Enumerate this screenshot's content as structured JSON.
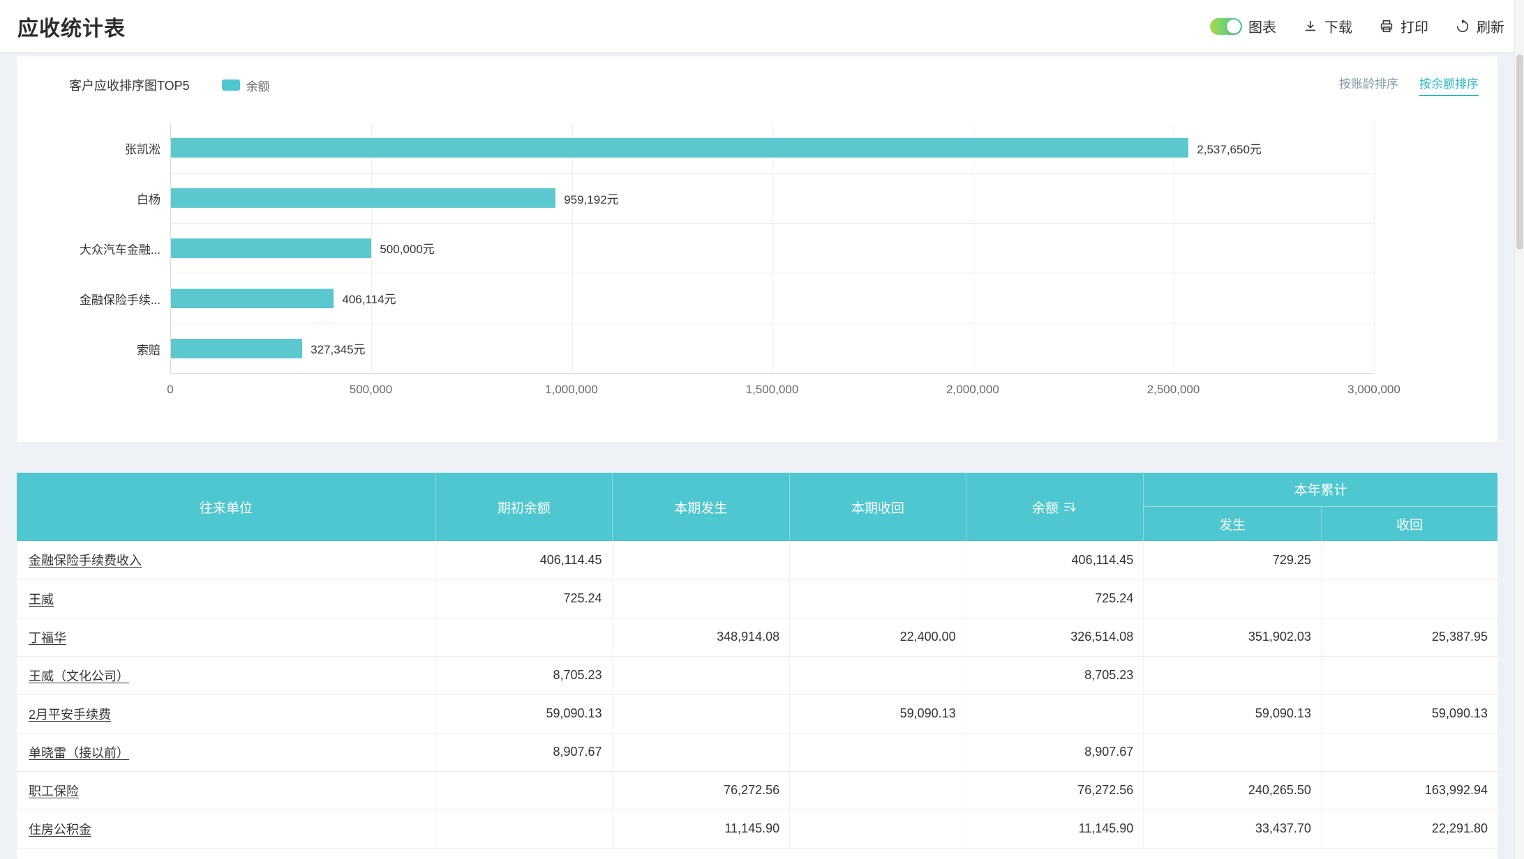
{
  "page": {
    "title": "应收统计表"
  },
  "toolbar": {
    "chart_toggle_label": "图表",
    "chart_toggle_on": true,
    "download_label": "下载",
    "print_label": "打印",
    "refresh_label": "刷新"
  },
  "chart": {
    "title": "客户应收排序图TOP5",
    "legend_label": "余额",
    "sort_by_age": "按账龄排序",
    "sort_by_balance": "按余额排序",
    "active_sort": "按余额排序"
  },
  "chart_data": {
    "type": "bar",
    "orientation": "horizontal",
    "title": "客户应收排序图TOP5",
    "legend": [
      "余额"
    ],
    "categories": [
      "张凯淞",
      "白杨",
      "大众汽车金融...",
      "金融保险手续...",
      "索赔"
    ],
    "values": [
      2537650,
      959192,
      500000,
      406114,
      327345
    ],
    "value_labels": [
      "2,537,650元",
      "959,192元",
      "500,000元",
      "406,114元",
      "327,345元"
    ],
    "xlim": [
      0,
      3000000
    ],
    "xticks": [
      "0",
      "500,000",
      "1,000,000",
      "1,500,000",
      "2,000,000",
      "2,500,000",
      "3,000,000"
    ],
    "grid": true,
    "legend_position": "top-left"
  },
  "table": {
    "headers": {
      "unit": "往来单位",
      "opening": "期初余额",
      "current_incurred": "本期发生",
      "current_received": "本期收回",
      "balance": "余额",
      "ytd": "本年累计",
      "ytd_incurred": "发生",
      "ytd_received": "收回"
    },
    "rows": [
      {
        "unit": "金融保险手续费收入",
        "opening": "406,114.45",
        "current_incurred": "",
        "current_received": "",
        "balance": "406,114.45",
        "ytd_incurred": "729.25",
        "ytd_received": ""
      },
      {
        "unit": "王威",
        "opening": "725.24",
        "current_incurred": "",
        "current_received": "",
        "balance": "725.24",
        "ytd_incurred": "",
        "ytd_received": ""
      },
      {
        "unit": "丁福华",
        "opening": "",
        "current_incurred": "348,914.08",
        "current_received": "22,400.00",
        "balance": "326,514.08",
        "ytd_incurred": "351,902.03",
        "ytd_received": "25,387.95"
      },
      {
        "unit": "王威（文化公司）",
        "opening": "8,705.23",
        "current_incurred": "",
        "current_received": "",
        "balance": "8,705.23",
        "ytd_incurred": "",
        "ytd_received": ""
      },
      {
        "unit": "2月平安手续费",
        "opening": "59,090.13",
        "current_incurred": "",
        "current_received": "59,090.13",
        "balance": "",
        "ytd_incurred": "59,090.13",
        "ytd_received": "59,090.13"
      },
      {
        "unit": "单晓雷（接以前）",
        "opening": "8,907.67",
        "current_incurred": "",
        "current_received": "",
        "balance": "8,907.67",
        "ytd_incurred": "",
        "ytd_received": ""
      },
      {
        "unit": "职工保险",
        "opening": "",
        "current_incurred": "76,272.56",
        "current_received": "",
        "balance": "76,272.56",
        "ytd_incurred": "240,265.50",
        "ytd_received": "163,992.94"
      },
      {
        "unit": "住房公积金",
        "opening": "",
        "current_incurred": "11,145.90",
        "current_received": "",
        "balance": "11,145.90",
        "ytd_incurred": "33,437.70",
        "ytd_received": "22,291.80"
      }
    ]
  },
  "icons": {
    "toggle": "switch-on",
    "download": "download-arrow",
    "print": "printer",
    "refresh": "circular-arrow",
    "sort": "sort-descending"
  },
  "colors": {
    "teal": "#4ec7d1",
    "bar": "#5bc8d0",
    "accent": "#2fb9c9",
    "page_bg": "#eef1f6",
    "toggle_green": "#a5d94d",
    "toggle_teal": "#35c8a0"
  }
}
